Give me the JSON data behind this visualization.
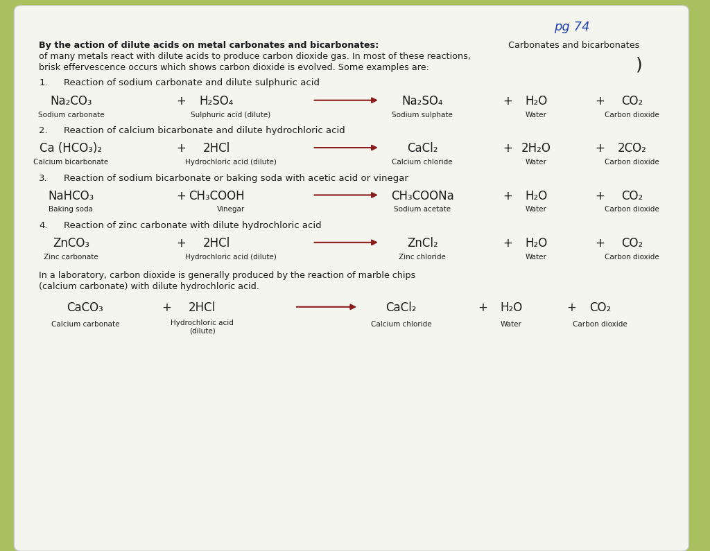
{
  "bg_outer": "#a8c060",
  "bg_paper": "#f5f5f0",
  "text_color": "#1a1a1a",
  "arrow_color": "#8b1a1a",
  "handwritten_color": "#2244aa",
  "page_note": "pg 74",
  "reactions": [
    {
      "number": "1.",
      "heading": "Reaction of sodium carbonate and dilute sulphuric acid",
      "eq_left": "Na₂CO₃",
      "eq_left2": "H₂SO₄",
      "eq_right1": "Na₂SO₄",
      "eq_right2": "H₂O",
      "eq_right3": "CO₂",
      "label_left": "Sodium carbonate",
      "label_left2": "Sulphuric acid (dilute)",
      "label_right1": "Sodium sulphate",
      "label_right2": "Water",
      "label_right3": "Carbon dioxide"
    },
    {
      "number": "2.",
      "heading": "Reaction of calcium bicarbonate and dilute hydrochloric acid",
      "eq_left": "Ca (HCO₃)₂",
      "eq_left2": "2HCl",
      "eq_right1": "CaCl₂",
      "eq_right2": "2H₂O",
      "eq_right3": "2CO₂",
      "label_left": "Calcium bicarbonate",
      "label_left2": "Hydrochloric acid (dilute)",
      "label_right1": "Calcium chloride",
      "label_right2": "Water",
      "label_right3": "Carbon dioxide"
    },
    {
      "number": "3.",
      "heading": "Reaction of sodium bicarbonate or baking soda with acetic acid or vinegar",
      "eq_left": "NaHCO₃",
      "eq_left2": "CH₃COOH",
      "eq_right1": "CH₃COONa",
      "eq_right2": "H₂O",
      "eq_right3": "CO₂",
      "label_left": "Baking soda",
      "label_left2": "Vinegar",
      "label_right1": "Sodium acetate",
      "label_right2": "Water",
      "label_right3": "Carbon dioxide"
    },
    {
      "number": "4.",
      "heading": "Reaction of zinc carbonate with dilute hydrochloric acid",
      "eq_left": "ZnCO₃",
      "eq_left2": "2HCl",
      "eq_right1": "ZnCl₂",
      "eq_right2": "H₂O",
      "eq_right3": "CO₂",
      "label_left": "Zinc carbonate",
      "label_left2": "Hydrochloric acid (dilute)",
      "label_right1": "Zinc chloride",
      "label_right2": "Water",
      "label_right3": "Carbon dioxide"
    }
  ],
  "lab_text1": "In a laboratory, carbon dioxide is generally produced by the reaction of marble chips",
  "lab_text2": "(calcium carbonate) with dilute hydrochloric acid.",
  "lab_eq_left": "CaCO₃",
  "lab_eq_left2": "2HCl",
  "lab_eq_right1": "CaCl₂",
  "lab_eq_right2": "H₂O",
  "lab_eq_right3": "CO₂",
  "lab_label_left": "Calcium carbonate",
  "lab_label_left2": "Hydrochloric acid\n(dilute)",
  "lab_label_right1": "Calcium chloride",
  "lab_label_right2": "Water",
  "lab_label_right3": "Carbon dioxide"
}
